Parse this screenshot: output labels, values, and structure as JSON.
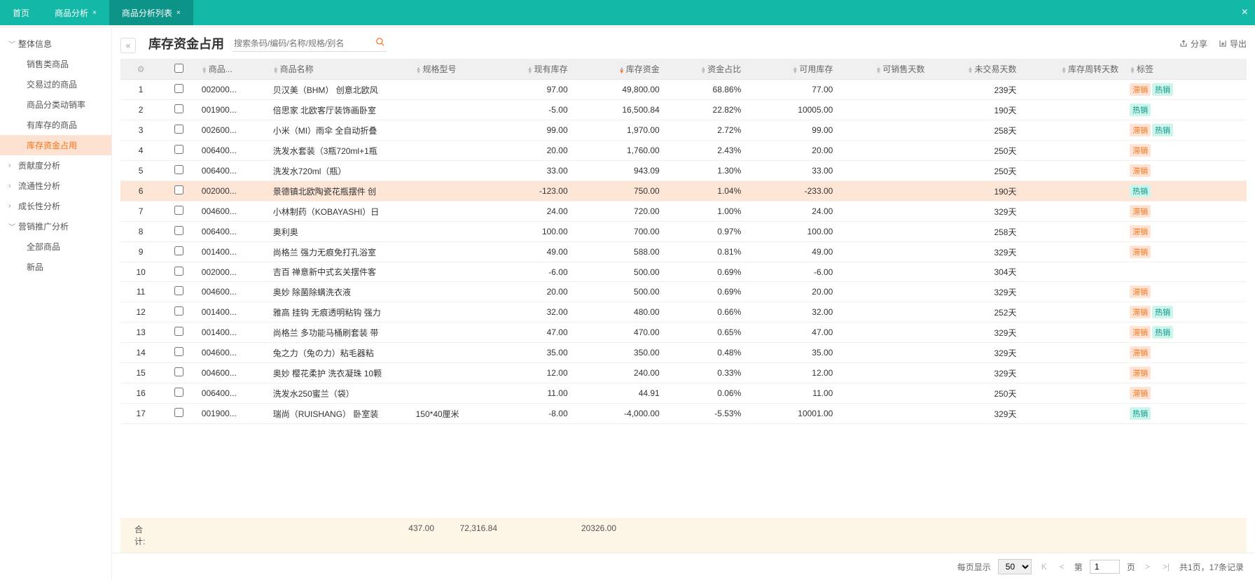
{
  "tabs": [
    {
      "label": "首页",
      "closable": false,
      "active": false
    },
    {
      "label": "商品分析",
      "closable": true,
      "active": false
    },
    {
      "label": "商品分析列表",
      "closable": true,
      "active": true
    }
  ],
  "sidebar": {
    "groups": [
      {
        "label": "整体信息",
        "expanded": true,
        "items": [
          {
            "label": "销售类商品",
            "active": false
          },
          {
            "label": "交易过的商品",
            "active": false
          },
          {
            "label": "商品分类动销率",
            "active": false
          },
          {
            "label": "有库存的商品",
            "active": false
          },
          {
            "label": "库存资金占用",
            "active": true
          }
        ]
      },
      {
        "label": "贡献度分析",
        "expanded": false,
        "items": []
      },
      {
        "label": "流通性分析",
        "expanded": false,
        "items": []
      },
      {
        "label": "成长性分析",
        "expanded": false,
        "items": []
      },
      {
        "label": "营销推广分析",
        "expanded": true,
        "items": [
          {
            "label": "全部商品",
            "active": false
          },
          {
            "label": "新品",
            "active": false
          }
        ]
      }
    ]
  },
  "page": {
    "title": "库存资金占用",
    "search_placeholder": "搜索条码/编码/名称/规格/别名",
    "share_label": "分享",
    "export_label": "导出"
  },
  "columns": [
    {
      "key": "idx",
      "label": "",
      "cls": "col-idx center",
      "gear": true
    },
    {
      "key": "chk",
      "label": "",
      "cls": "col-chk center",
      "checkbox": true
    },
    {
      "key": "code",
      "label": "商品...",
      "cls": "col-code left",
      "sort": true
    },
    {
      "key": "name",
      "label": "商品名称",
      "cls": "col-name left",
      "sort": true
    },
    {
      "key": "spec",
      "label": "规格型号",
      "cls": "col-spec left",
      "sort": true
    },
    {
      "key": "stock",
      "label": "现有库存",
      "cls": "col-stock num",
      "sort": true
    },
    {
      "key": "fund",
      "label": "库存资金",
      "cls": "col-fund num",
      "sort": true,
      "sorted_desc": true
    },
    {
      "key": "pct",
      "label": "资金占比",
      "cls": "col-pct num",
      "sort": true
    },
    {
      "key": "avail",
      "label": "可用库存",
      "cls": "col-avail num",
      "sort": true
    },
    {
      "key": "saleDays",
      "label": "可销售天数",
      "cls": "col-days num",
      "sort": true
    },
    {
      "key": "noTradeDays",
      "label": "未交易天数",
      "cls": "col-notrade num",
      "sort": true
    },
    {
      "key": "turnDays",
      "label": "库存周转天数",
      "cls": "col-turn num",
      "sort": true
    },
    {
      "key": "tags",
      "label": "标签",
      "cls": "col-tags left",
      "sort": true
    }
  ],
  "rows": [
    {
      "idx": 1,
      "code": "002000...",
      "name": "贝汉美（BHM） 创意北欧风",
      "spec": "",
      "stock": "97.00",
      "fund": "49,800.00",
      "pct": "68.86%",
      "avail": "77.00",
      "saleDays": "",
      "noTradeDays": "239天",
      "turnDays": "",
      "tags": [
        "滞销",
        "热销"
      ]
    },
    {
      "idx": 2,
      "code": "001900...",
      "name": "倍思家 北欧客厅装饰画卧室",
      "spec": "",
      "stock": "-5.00",
      "fund": "16,500.84",
      "pct": "22.82%",
      "avail": "10005.00",
      "saleDays": "",
      "noTradeDays": "190天",
      "turnDays": "",
      "tags": [
        "热销"
      ]
    },
    {
      "idx": 3,
      "code": "002600...",
      "name": "小米（MI）雨伞 全自动折叠",
      "spec": "",
      "stock": "99.00",
      "fund": "1,970.00",
      "pct": "2.72%",
      "avail": "99.00",
      "saleDays": "",
      "noTradeDays": "258天",
      "turnDays": "",
      "tags": [
        "滞销",
        "热销"
      ]
    },
    {
      "idx": 4,
      "code": "006400...",
      "name": "洗发水套装（3瓶720ml+1瓶",
      "spec": "",
      "stock": "20.00",
      "fund": "1,760.00",
      "pct": "2.43%",
      "avail": "20.00",
      "saleDays": "",
      "noTradeDays": "250天",
      "turnDays": "",
      "tags": [
        "滞销"
      ]
    },
    {
      "idx": 5,
      "code": "006400...",
      "name": "洗发水720ml（瓶）",
      "spec": "",
      "stock": "33.00",
      "fund": "943.09",
      "pct": "1.30%",
      "avail": "33.00",
      "saleDays": "",
      "noTradeDays": "250天",
      "turnDays": "",
      "tags": [
        "滞销"
      ]
    },
    {
      "idx": 6,
      "code": "002000...",
      "name": "景德镇北欧陶瓷花瓶摆件 创",
      "spec": "",
      "stock": "-123.00",
      "fund": "750.00",
      "pct": "1.04%",
      "avail": "-233.00",
      "saleDays": "",
      "noTradeDays": "190天",
      "turnDays": "",
      "tags": [
        "热销"
      ],
      "highlight": true
    },
    {
      "idx": 7,
      "code": "004600...",
      "name": "小林制药（KOBAYASHI）日",
      "spec": "",
      "stock": "24.00",
      "fund": "720.00",
      "pct": "1.00%",
      "avail": "24.00",
      "saleDays": "",
      "noTradeDays": "329天",
      "turnDays": "",
      "tags": [
        "滞销"
      ]
    },
    {
      "idx": 8,
      "code": "006400...",
      "name": "奥利奥",
      "spec": "",
      "stock": "100.00",
      "fund": "700.00",
      "pct": "0.97%",
      "avail": "100.00",
      "saleDays": "",
      "noTradeDays": "258天",
      "turnDays": "",
      "tags": [
        "滞销"
      ]
    },
    {
      "idx": 9,
      "code": "001400...",
      "name": "尚格兰 强力无痕免打孔浴室",
      "spec": "",
      "stock": "49.00",
      "fund": "588.00",
      "pct": "0.81%",
      "avail": "49.00",
      "saleDays": "",
      "noTradeDays": "329天",
      "turnDays": "",
      "tags": [
        "滞销"
      ]
    },
    {
      "idx": 10,
      "code": "002000...",
      "name": "吉百 禅意新中式玄关摆件客",
      "spec": "",
      "stock": "-6.00",
      "fund": "500.00",
      "pct": "0.69%",
      "avail": "-6.00",
      "saleDays": "",
      "noTradeDays": "304天",
      "turnDays": "",
      "tags": []
    },
    {
      "idx": 11,
      "code": "004600...",
      "name": "奥妙 除菌除螨洗衣液",
      "spec": "",
      "stock": "20.00",
      "fund": "500.00",
      "pct": "0.69%",
      "avail": "20.00",
      "saleDays": "",
      "noTradeDays": "329天",
      "turnDays": "",
      "tags": [
        "滞销"
      ]
    },
    {
      "idx": 12,
      "code": "001400...",
      "name": "雅高 挂钩 无痕透明粘钩 强力",
      "spec": "",
      "stock": "32.00",
      "fund": "480.00",
      "pct": "0.66%",
      "avail": "32.00",
      "saleDays": "",
      "noTradeDays": "252天",
      "turnDays": "",
      "tags": [
        "滞销",
        "热销"
      ]
    },
    {
      "idx": 13,
      "code": "001400...",
      "name": "尚格兰 多功能马桶刷套装 带",
      "spec": "",
      "stock": "47.00",
      "fund": "470.00",
      "pct": "0.65%",
      "avail": "47.00",
      "saleDays": "",
      "noTradeDays": "329天",
      "turnDays": "",
      "tags": [
        "滞销",
        "热销"
      ]
    },
    {
      "idx": 14,
      "code": "004600...",
      "name": "兔之力（兔の力）粘毛器粘",
      "spec": "",
      "stock": "35.00",
      "fund": "350.00",
      "pct": "0.48%",
      "avail": "35.00",
      "saleDays": "",
      "noTradeDays": "329天",
      "turnDays": "",
      "tags": [
        "滞销"
      ]
    },
    {
      "idx": 15,
      "code": "004600...",
      "name": "奥妙 樱花柔护 洗衣凝珠 10颗",
      "spec": "",
      "stock": "12.00",
      "fund": "240.00",
      "pct": "0.33%",
      "avail": "12.00",
      "saleDays": "",
      "noTradeDays": "329天",
      "turnDays": "",
      "tags": [
        "滞销"
      ]
    },
    {
      "idx": 16,
      "code": "006400...",
      "name": "洗发水250蜜兰（袋）",
      "spec": "",
      "stock": "11.00",
      "fund": "44.91",
      "pct": "0.06%",
      "avail": "11.00",
      "saleDays": "",
      "noTradeDays": "250天",
      "turnDays": "",
      "tags": [
        "滞销"
      ]
    },
    {
      "idx": 17,
      "code": "001900...",
      "name": "瑞尚（RUISHANG） 卧室装",
      "spec": "150*40厘米",
      "stock": "-8.00",
      "fund": "-4,000.00",
      "pct": "-5.53%",
      "avail": "10001.00",
      "saleDays": "",
      "noTradeDays": "329天",
      "turnDays": "",
      "tags": [
        "热销"
      ]
    }
  ],
  "totals": {
    "label": "合计:",
    "stock": "437.00",
    "fund": "72,316.84",
    "avail": "20326.00"
  },
  "pager": {
    "per_page_label": "每页显示",
    "per_page_value": "50",
    "page_prefix": "第",
    "page_value": "1",
    "page_suffix": "页",
    "summary": "共1页，17条记录"
  },
  "tag_styles": {
    "滞销": "tag-slow",
    "热销": "tag-hot"
  }
}
